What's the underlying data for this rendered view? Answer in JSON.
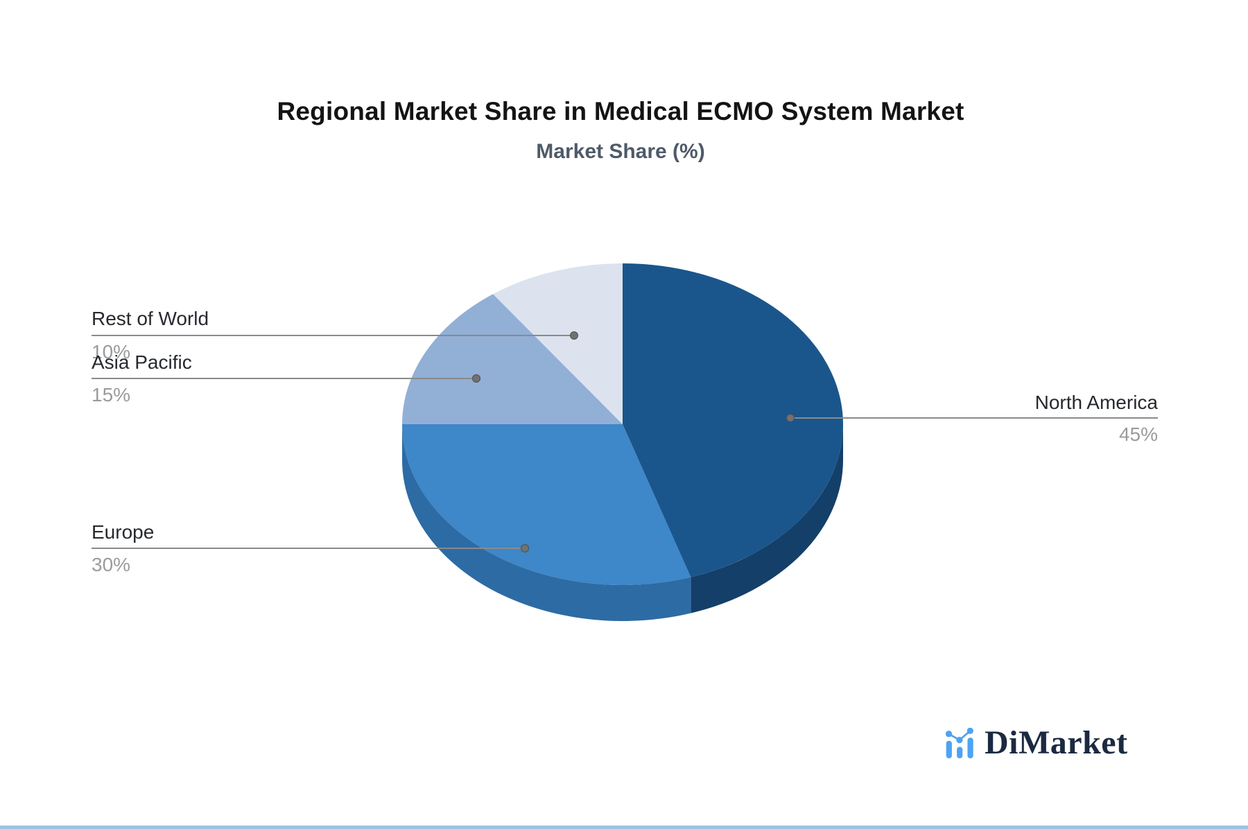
{
  "title": "Regional Market Share in Medical ECMO System Market",
  "subtitle": "Market Share (%)",
  "chart_data": {
    "type": "pie",
    "unit": "%",
    "start_angle_deg": 0,
    "direction": "clockwise",
    "effect": "3d-depth",
    "legend_position": "callout-labels",
    "slices": [
      {
        "label": "North America",
        "value": 45,
        "display": "45%",
        "color": "#1a568c",
        "depth_color": "#143f69"
      },
      {
        "label": "Europe",
        "value": 30,
        "display": "30%",
        "color": "#3e87c8",
        "depth_color": "#2d6ba5"
      },
      {
        "label": "Asia Pacific",
        "value": 15,
        "display": "15%",
        "color": "#92afd6"
      },
      {
        "label": "Rest of World",
        "value": 10,
        "display": "10%",
        "color": "#dce3ee"
      }
    ]
  },
  "branding": {
    "logo_text": "DiMarket",
    "logo_icon": "bar-line-chart-icon",
    "logo_icon_color": "#4da3f2",
    "logo_text_color": "#1b2a41"
  },
  "colors": {
    "background": "#ffffff",
    "title_text": "#141414",
    "subtitle_text": "#4e5a68",
    "label_text": "#26292e",
    "percent_text": "#9b9b9b",
    "leader_line": "#8a8a8a",
    "bottom_strip": "#9dc1e4"
  }
}
